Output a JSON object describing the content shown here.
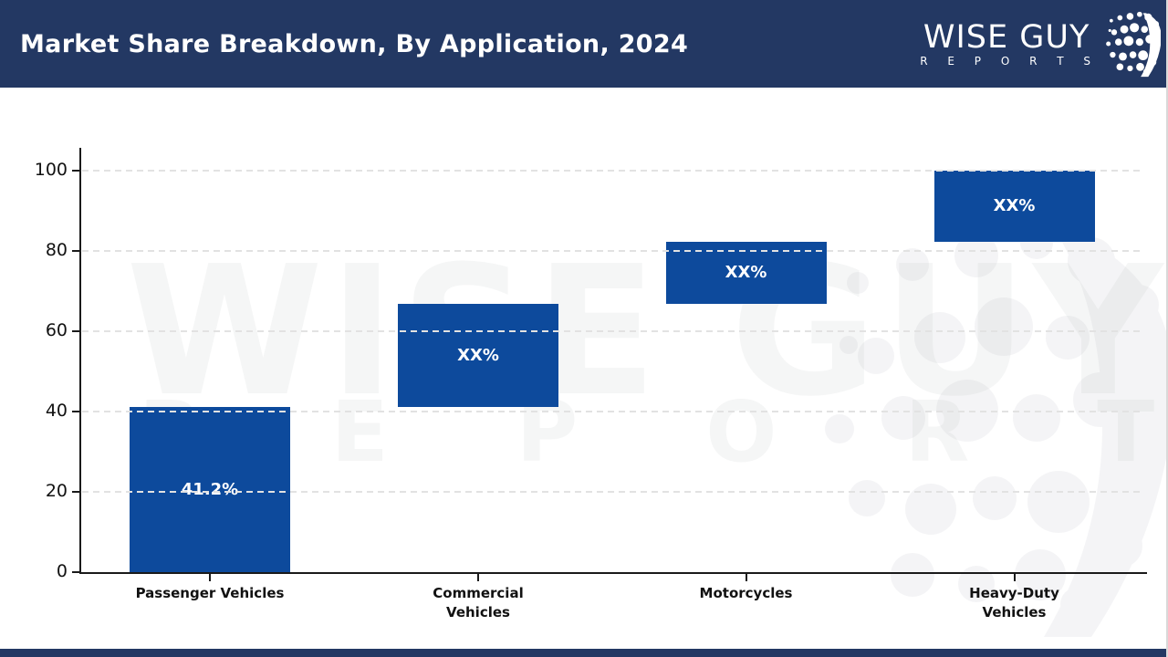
{
  "page": {
    "header": {
      "title": "Market Share Breakdown, By Application, 2024",
      "bg_color": "#233863",
      "logo": {
        "line1": "WISE GUY",
        "line2": "R E P O R T S"
      }
    },
    "watermark": {
      "line1": "WISE GUY",
      "line2": "R E P O R T S"
    },
    "footer": {
      "bg_color": "#233863"
    }
  },
  "chart_data": {
    "type": "bar",
    "subtype": "waterfall",
    "title": "Market Share Breakdown, By Application, 2024",
    "categories": [
      "Passenger Vehicles",
      "Commercial\nVehicles",
      "Motorcycles",
      "Heavy-Duty\nVehicles"
    ],
    "segments": [
      {
        "category": "Passenger Vehicles",
        "start": 0,
        "end": 41.2,
        "label": "41.2%"
      },
      {
        "category": "Commercial\nVehicles",
        "start": 41.2,
        "end": 66.8,
        "label": "XX%"
      },
      {
        "category": "Motorcycles",
        "start": 66.8,
        "end": 82.3,
        "label": "XX%"
      },
      {
        "category": "Heavy-Duty\nVehicles",
        "start": 82.3,
        "end": 100,
        "label": "XX%"
      }
    ],
    "yticks": [
      0,
      20,
      40,
      60,
      80,
      100
    ],
    "ylim": [
      0,
      105
    ],
    "xlabel": "",
    "ylabel": "",
    "grid": true,
    "grid_style": "dashed",
    "legend": false,
    "bar_color": "#0d4a9c",
    "bar_label_color": "#ffffff",
    "axis_color": "#1a1a1a",
    "grid_color": "#e2e2e2"
  }
}
